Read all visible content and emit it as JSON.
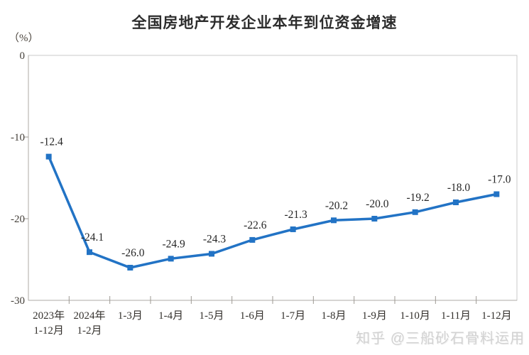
{
  "page": {
    "title": "全国房地产开发企业本年到位资金增速",
    "watermark": "知乎 @三船砂石骨料运用"
  },
  "chart_data": {
    "type": "line",
    "title": "全国房地产开发企业本年到位资金增速",
    "ylabel": "（%）",
    "xlabel": "",
    "categories": [
      [
        "2023年",
        "1-12月"
      ],
      [
        "2024年",
        "1-2月"
      ],
      [
        "1-3月"
      ],
      [
        "1-4月"
      ],
      [
        "1-5月"
      ],
      [
        "1-6月"
      ],
      [
        "1-7月"
      ],
      [
        "1-8月"
      ],
      [
        "1-9月"
      ],
      [
        "1-10月"
      ],
      [
        "1-11月"
      ],
      [
        "1-12月"
      ]
    ],
    "values": [
      -12.4,
      -24.1,
      -26.0,
      -24.9,
      -24.3,
      -22.6,
      -21.3,
      -20.2,
      -20.0,
      -19.2,
      -18.0,
      -17.0
    ],
    "data_labels": [
      "-12.4",
      "-24.1",
      "-26.0",
      "-24.9",
      "-24.3",
      "-22.6",
      "-21.3",
      "-20.2",
      "-20.0",
      "-19.2",
      "-18.0",
      "-17.0"
    ],
    "ylim": [
      -30,
      0
    ],
    "yticks": [
      0,
      -10,
      -20,
      -30
    ],
    "grid": false,
    "legend": "none",
    "marker": "square",
    "colors": {
      "line": "#2273c5",
      "plot_border": "#c9c9c9",
      "axis_line": "#aeaaa5",
      "tick": "#9d9993"
    }
  }
}
